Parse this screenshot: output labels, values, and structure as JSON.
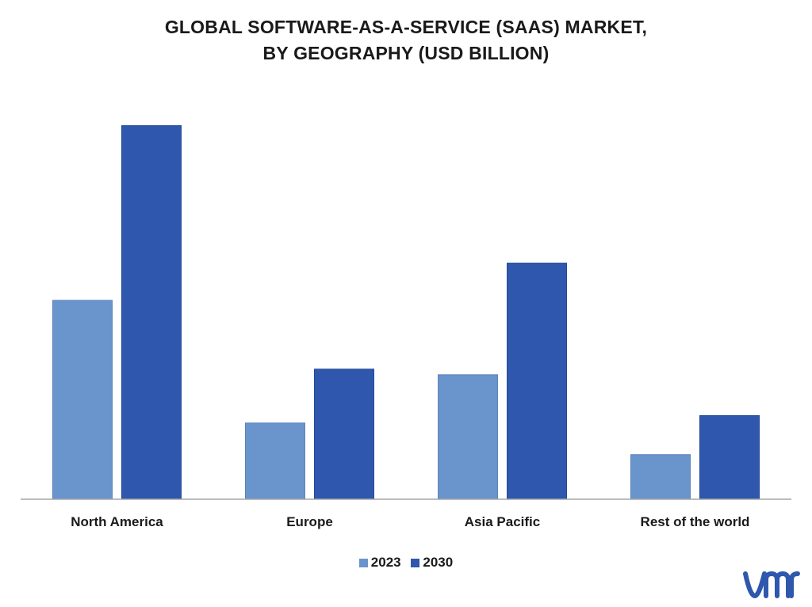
{
  "chart_data": {
    "type": "bar",
    "title": "GLOBAL SOFTWARE-AS-A-SERVICE  (SAAS) MARKET,",
    "subtitle": "BY GEOGRAPHY (USD BILLION)",
    "categories": [
      "North America",
      "Europe",
      "Asia Pacific",
      "Rest of the world"
    ],
    "series": [
      {
        "name": "2023",
        "values": [
          53.5,
          20.5,
          33.5,
          12.0
        ],
        "color": "#6a94cc"
      },
      {
        "name": "2030",
        "values": [
          100.5,
          35.0,
          63.5,
          22.5
        ],
        "color": "#2e57ad"
      }
    ],
    "ylim": [
      0,
      110
    ],
    "grid": false,
    "legend": "bottom-center"
  },
  "logo": {
    "icon": "vmr-logo-icon",
    "color": "#2e57ad"
  }
}
